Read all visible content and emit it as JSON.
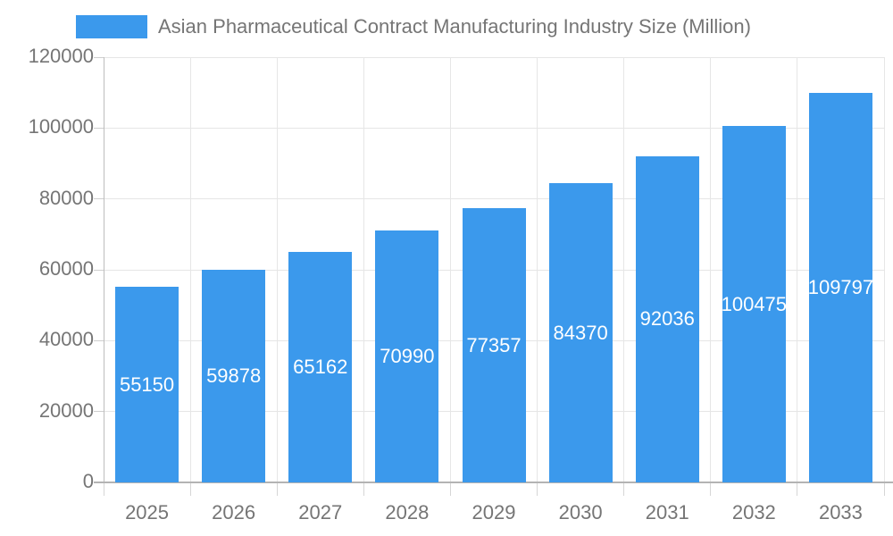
{
  "legend": {
    "title": "Asian Pharmaceutical Contract Manufacturing Industry Size (Million)"
  },
  "chart_data": {
    "type": "bar",
    "categories": [
      "2025",
      "2026",
      "2027",
      "2028",
      "2029",
      "2030",
      "2031",
      "2032",
      "2033"
    ],
    "values": [
      55150,
      59878,
      65162,
      70990,
      77357,
      84370,
      92036,
      100475,
      109797
    ],
    "title": "Asian Pharmaceutical Contract Manufacturing Industry Size (Million)",
    "xlabel": "",
    "ylabel": "",
    "ylim": [
      0,
      120000
    ],
    "ytick_step": 20000,
    "ytick_labels": [
      "0",
      "20000",
      "40000",
      "60000",
      "80000",
      "100000",
      "120000"
    ],
    "grid": true,
    "legend_position": "top",
    "bar_labels_shown": true,
    "bar_label_position": "center"
  },
  "colors": {
    "bar": "#3b99ec",
    "axis_text": "#757575",
    "gridline": "#e6e6e6",
    "axis_line": "#b3b3b3",
    "bar_label": "#ffffff",
    "background": "#ffffff"
  }
}
